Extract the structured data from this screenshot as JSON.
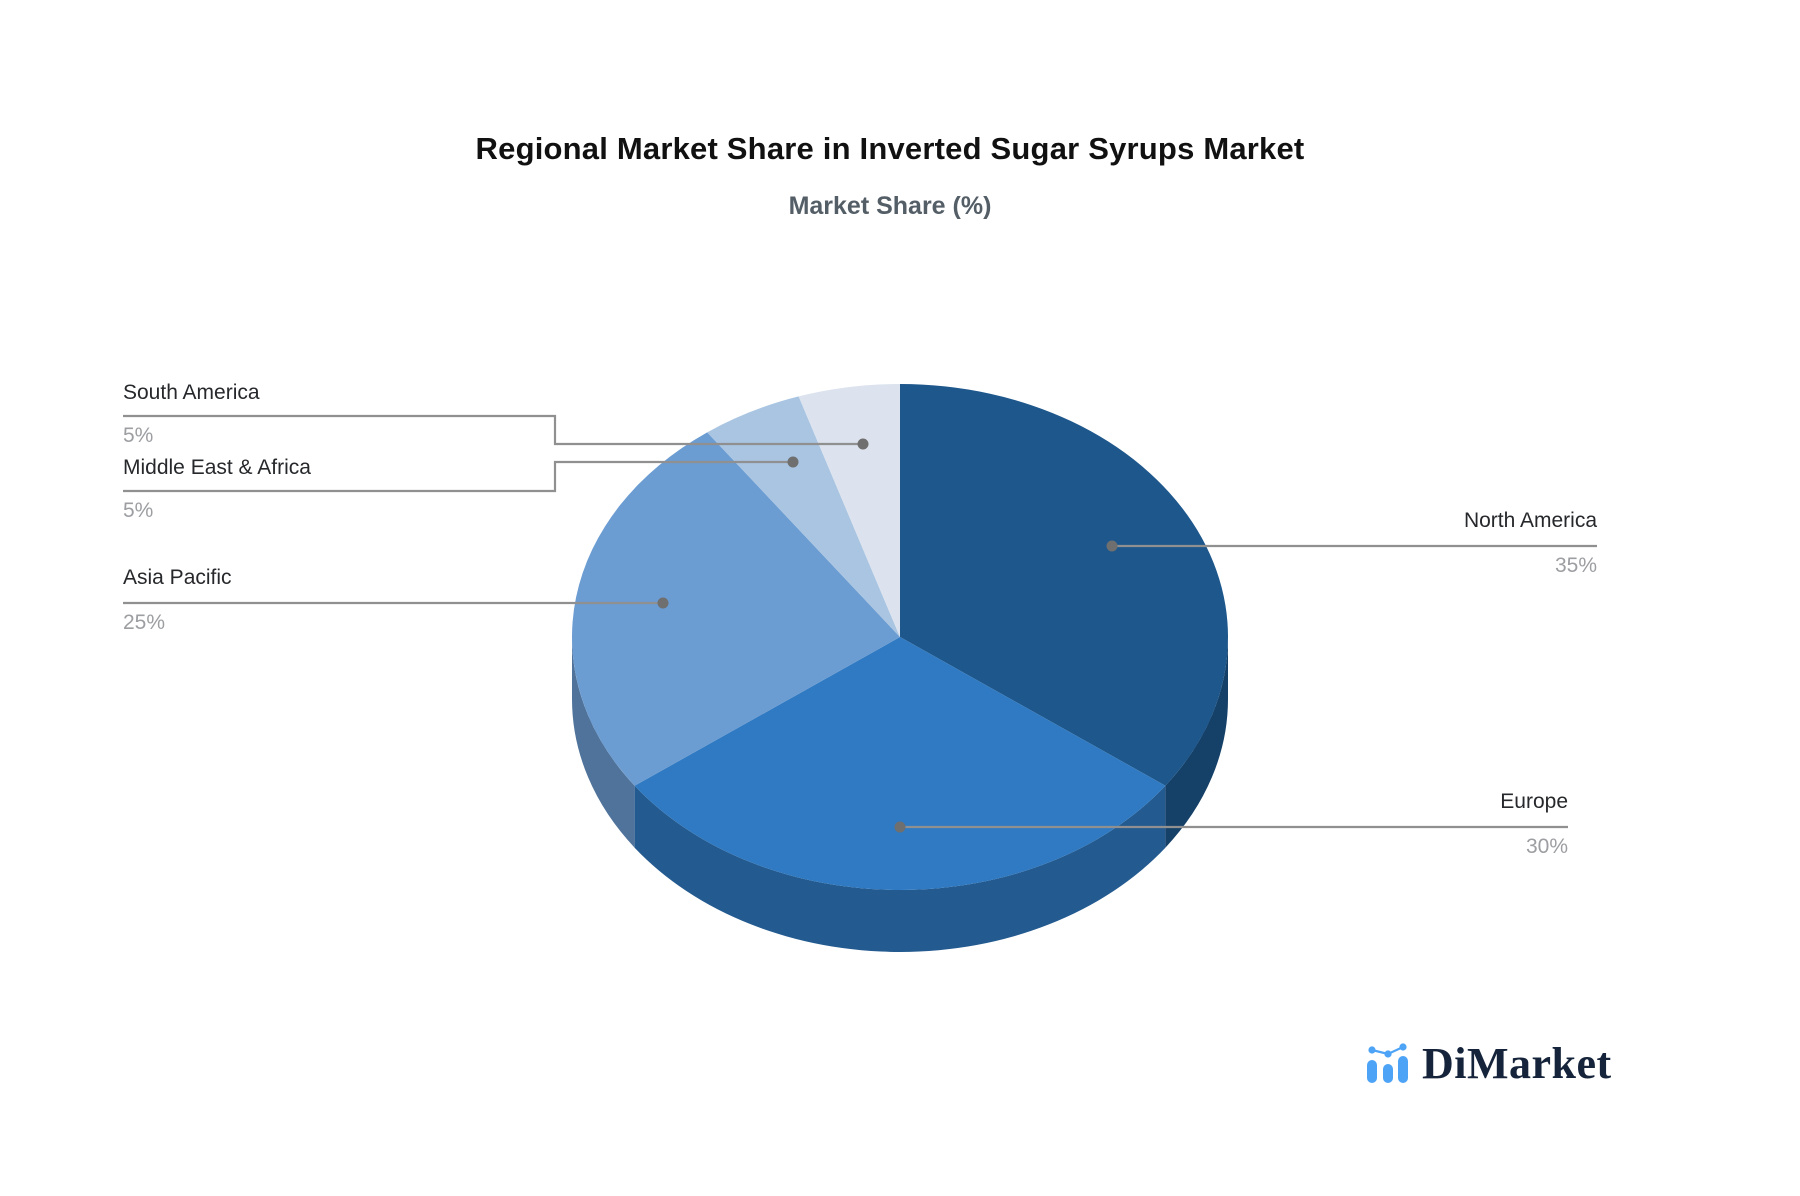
{
  "header": {
    "title": "Regional Market Share in Inverted Sugar Syrups Market",
    "subtitle": "Market Share (%)"
  },
  "chart_data": {
    "type": "pie",
    "style": "3d",
    "title": "Regional Market Share in Inverted Sugar Syrups Market",
    "subtitle": "Market Share (%)",
    "unit": "%",
    "direction": "clockwise",
    "start_angle_deg": 0,
    "legend": "none",
    "slices": [
      {
        "label": "North America",
        "value": 35,
        "color": "#1d578c"
      },
      {
        "label": "Europe",
        "value": 30,
        "color": "#2f7ac2"
      },
      {
        "label": "Asia Pacific",
        "value": 25,
        "color": "#6b9cd2"
      },
      {
        "label": "Middle East & Africa",
        "value": 5,
        "color": "#a9c5e2"
      },
      {
        "label": "South America",
        "value": 5,
        "color": "#dce3ee"
      }
    ]
  },
  "callouts": [
    {
      "name": "North America",
      "pct": "35%"
    },
    {
      "name": "Europe",
      "pct": "30%"
    },
    {
      "name": "Asia Pacific",
      "pct": "25%"
    },
    {
      "name": "Middle East & Africa",
      "pct": "5%"
    },
    {
      "name": "South America",
      "pct": "5%"
    }
  ],
  "branding": {
    "logo_text": "DiMarket"
  },
  "colors": {
    "leader_line": "#909090",
    "leader_dot": "#6f6f6f",
    "label_text": "#26282b",
    "pct_text": "#9c9ea1",
    "title_text": "#111111",
    "subtitle_text": "#545e66",
    "logo_text": "#15243b",
    "logo_icon": "#4da3f5"
  }
}
